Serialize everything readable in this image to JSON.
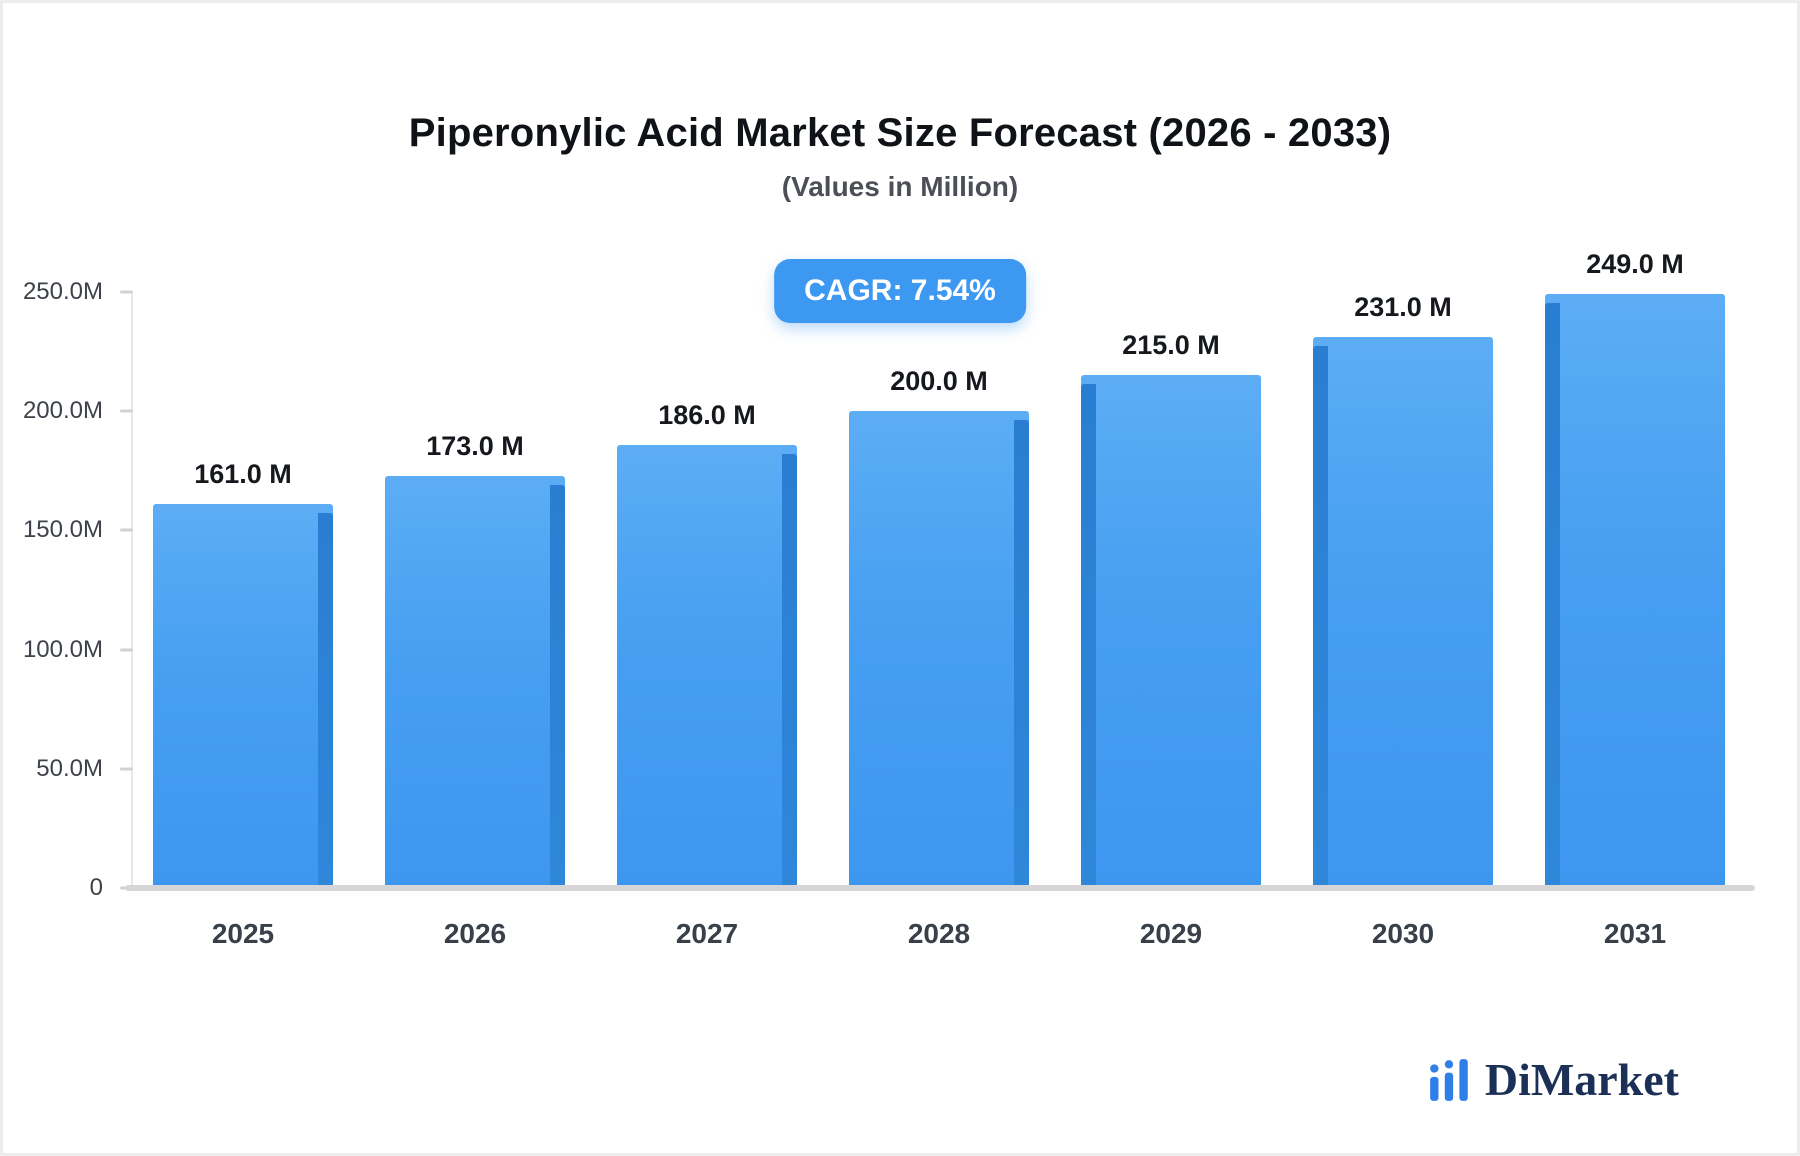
{
  "title": "Piperonylic Acid Market Size Forecast (2026 - 2033)",
  "subtitle": "(Values in Million)",
  "cagr_badge": "CAGR: 7.54%",
  "logo": {
    "text": "DiMarket",
    "icon": "bar-chart-logo-icon"
  },
  "colors": {
    "bar_main": "#3d97ef",
    "bar_light": "#5cadf4",
    "bar_dark": "#2a7ed2",
    "badge_background": "#3d98f2",
    "badge_text": "#ffffff",
    "axis_line": "#d6d6d8",
    "logo_icon": "#2e7fe8",
    "logo_text": "#1c3057"
  },
  "chart_data": {
    "type": "bar",
    "categories": [
      "2025",
      "2026",
      "2027",
      "2028",
      "2029",
      "2030",
      "2031"
    ],
    "values": [
      161.0,
      173.0,
      186.0,
      200.0,
      215.0,
      231.0,
      249.0
    ],
    "value_labels": [
      "161.0 M",
      "173.0 M",
      "186.0 M",
      "200.0 M",
      "215.0 M",
      "231.0 M",
      "249.0 M"
    ],
    "title": "Piperonylic Acid Market Size Forecast (2026 - 2033)",
    "subtitle": "(Values in Million)",
    "annotations": [
      "CAGR: 7.54%"
    ],
    "xlabel": "",
    "ylabel": "",
    "unit": "Million",
    "ylim": [
      0,
      250
    ],
    "ytick_labels": [
      "0",
      "50.0M",
      "100.0M",
      "150.0M",
      "200.0M",
      "250.0M"
    ],
    "grid": false,
    "legend": false
  }
}
